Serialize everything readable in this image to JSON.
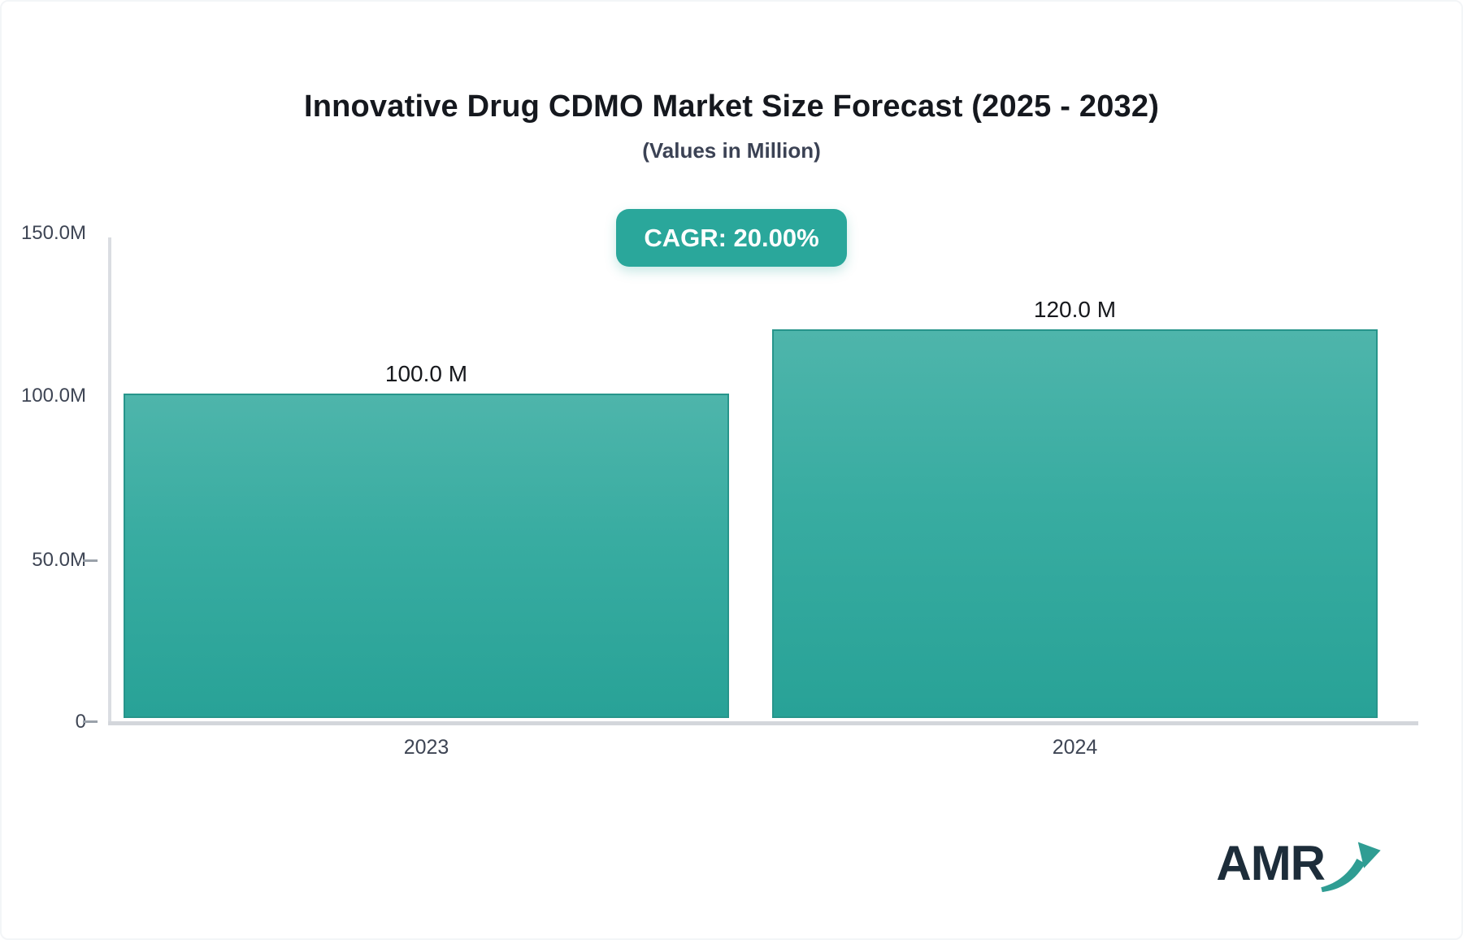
{
  "header": {
    "title": "Innovative Drug CDMO Market Size Forecast (2025 - 2032)",
    "subtitle": "(Values in Million)",
    "cagr_badge": "CAGR: 20.00%"
  },
  "chart_data": {
    "type": "bar",
    "title": "Innovative Drug CDMO Market Size Forecast (2025 - 2032)",
    "subtitle": "(Values in Million)",
    "cagr_percent": "20.00%",
    "unit": "Million",
    "categories": [
      "2023",
      "2024"
    ],
    "values": [
      100.0,
      120.0
    ],
    "value_labels": [
      "100.0 M",
      "120.0 M"
    ],
    "ylim": [
      0,
      150
    ],
    "y_tick_labels": [
      "150.0M",
      "100.0M",
      "50.0M",
      "0"
    ],
    "grid": "off",
    "legend": "none",
    "colors": {
      "bar_gradient_top": "#4eb5ab",
      "bar_gradient_bottom": "#28a297",
      "bar_border": "#27958b",
      "badge_background": "#2aa79b",
      "axis_line": "#dadde2",
      "axis_text": "#3e4554"
    }
  },
  "logo": {
    "text": "AMR"
  }
}
